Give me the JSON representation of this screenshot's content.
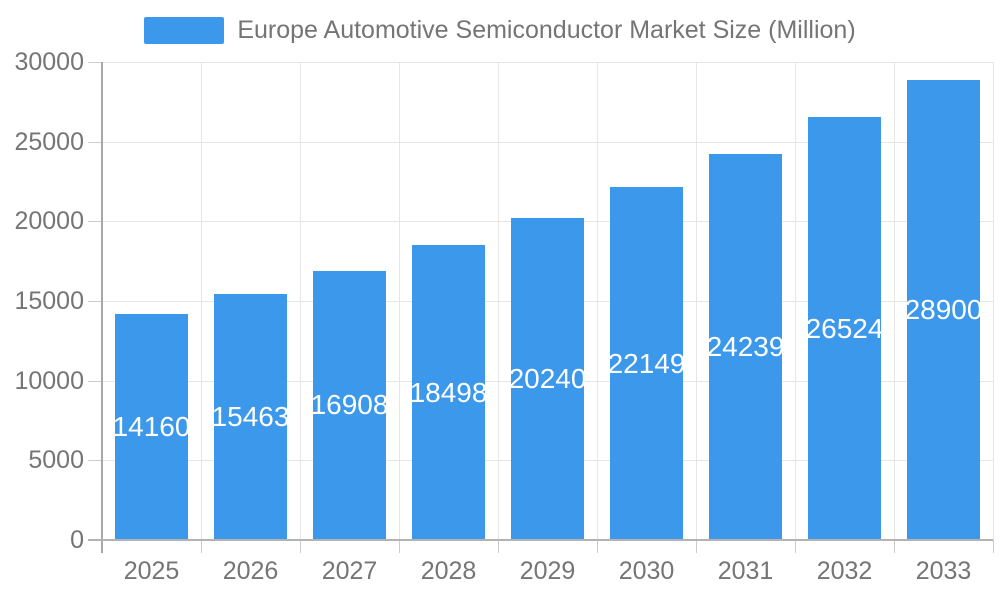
{
  "chart_data": {
    "type": "bar",
    "title": "Europe Automotive Semiconductor Market Size (Million)",
    "categories": [
      "2025",
      "2026",
      "2027",
      "2028",
      "2029",
      "2030",
      "2031",
      "2032",
      "2033"
    ],
    "values": [
      14160,
      15463,
      16908,
      18498,
      20240,
      22149,
      24239,
      26524,
      28900
    ],
    "xlabel": "",
    "ylabel": "",
    "ylim": [
      0,
      30000
    ],
    "yticks": [
      0,
      5000,
      10000,
      15000,
      20000,
      25000,
      30000
    ],
    "grid": true,
    "legend_position": "top",
    "colors": {
      "bar": "#3b98eb",
      "bar_label": "#ffffff",
      "axis_text": "#757575",
      "legend_text": "#757575",
      "gridline": "#e6e6e6",
      "y_axis_line": "#a8a8a8",
      "baseline": "#b3b3b3",
      "tick": "#cccccc",
      "background": "#ffffff"
    }
  }
}
